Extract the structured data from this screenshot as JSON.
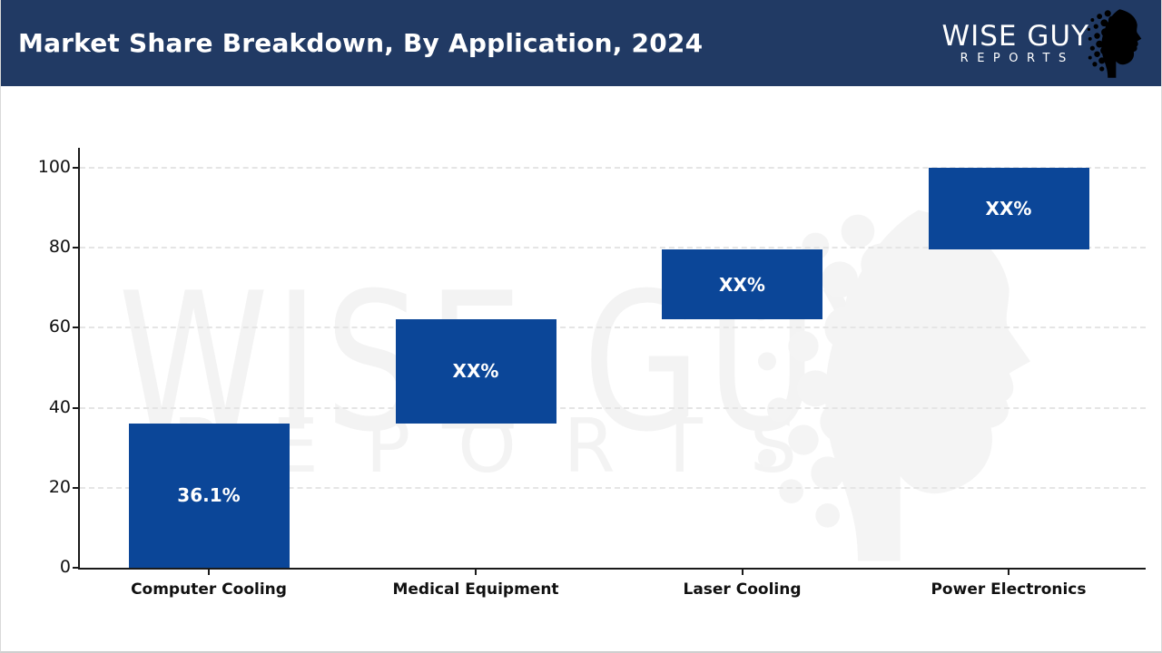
{
  "header": {
    "title": "Market Share Breakdown, By Application, 2024",
    "bg_color": "#213a64",
    "logo": {
      "line1": "WISE GUY",
      "line2": "REPORTS"
    }
  },
  "watermark": {
    "line1": "WISE GUY",
    "line2": "REPORTS"
  },
  "colors": {
    "bar_blue": "#0b4698",
    "header_navy": "#213a64",
    "axis": "#1a1a1a",
    "grid": "#e5e5e5",
    "watermark": "#f3f3f3"
  },
  "chart_data": {
    "type": "bar",
    "subtype": "floating_waterfall_bars",
    "title": "Market Share Breakdown, By Application, 2024",
    "categories": [
      "Computer Cooling",
      "Medical Equipment",
      "Laser Cooling",
      "Power Electronics"
    ],
    "series": [
      {
        "name": "Market Share (%)",
        "ranges": [
          [
            0,
            36.1
          ],
          [
            36.1,
            62.1
          ],
          [
            62.1,
            79.5
          ],
          [
            79.5,
            100
          ]
        ],
        "labels": [
          "36.1%",
          "XX%",
          "XX%",
          "XX%"
        ]
      }
    ],
    "xlabel": "",
    "ylabel": "",
    "yticks": [
      0,
      20,
      40,
      60,
      80,
      100
    ],
    "ylim": [
      0,
      105
    ],
    "grid": "horizontal-dashed",
    "legend": "none",
    "bar_color": "#0b4698",
    "bar_label_color": "#ffffff"
  }
}
